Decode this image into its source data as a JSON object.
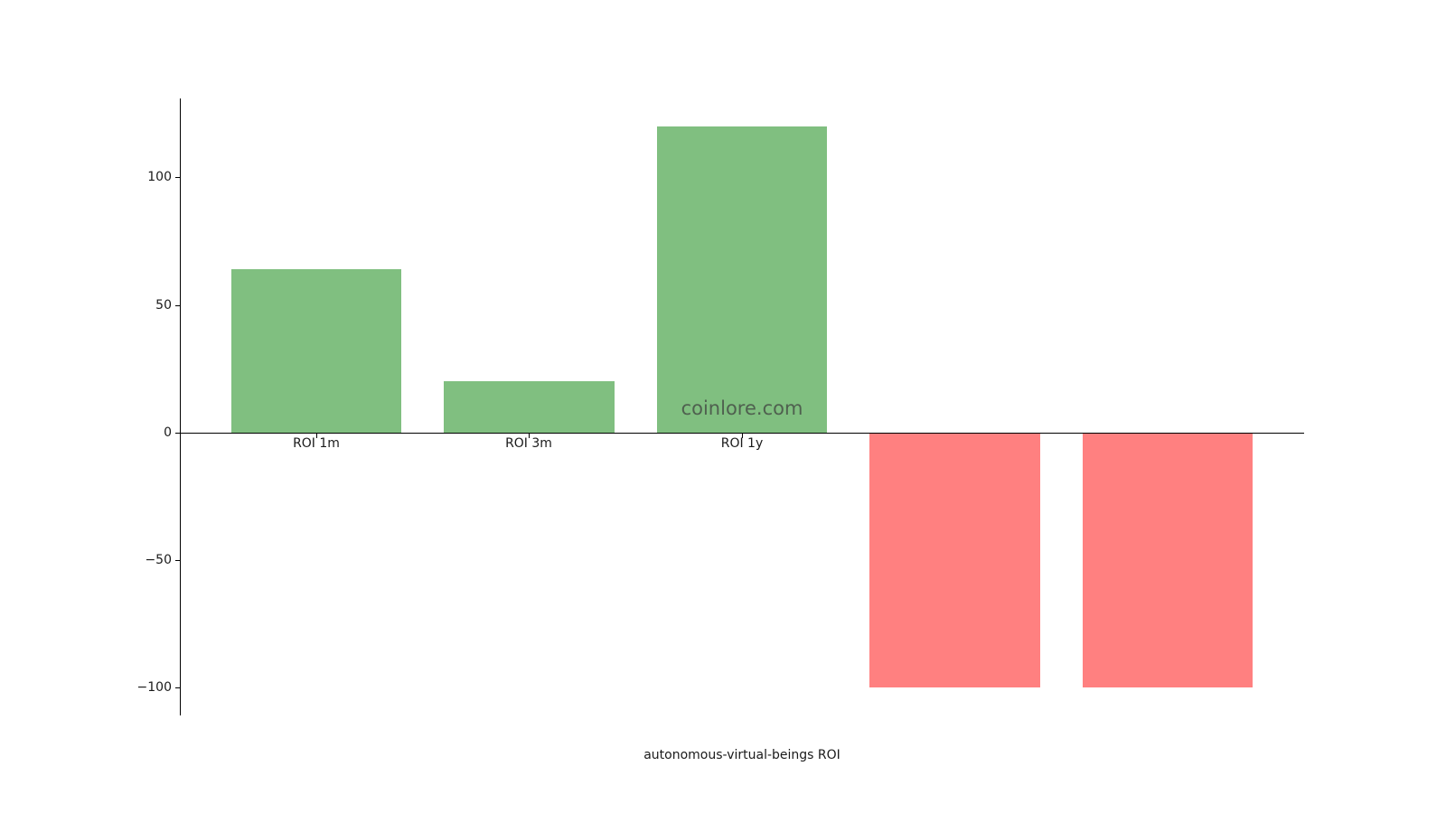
{
  "page": {
    "background": "#ffffff"
  },
  "chart_data": {
    "type": "bar",
    "categories": [
      "ROI 1m",
      "ROI 3m",
      "ROI 1y",
      "",
      ""
    ],
    "values": [
      64,
      20,
      120,
      -100,
      -100
    ],
    "bar_colors": [
      "#80bf80",
      "#80bf80",
      "#80bf80",
      "#ff8080",
      "#ff8080"
    ],
    "positive_color": "#80bf80",
    "negative_color": "#ff8080",
    "title": "",
    "xlabel": "autonomous-virtual-beings ROI",
    "ylabel": "",
    "yticks": [
      100,
      50,
      0,
      -50,
      -100
    ],
    "ylim": [
      -111,
      131
    ],
    "xlim": [
      -0.64,
      4.64
    ],
    "bar_width": 0.8,
    "grid": false,
    "legend": null,
    "watermark": "coinlore.com",
    "axis_color": "#000000",
    "text_color": "#1a1a1a"
  }
}
